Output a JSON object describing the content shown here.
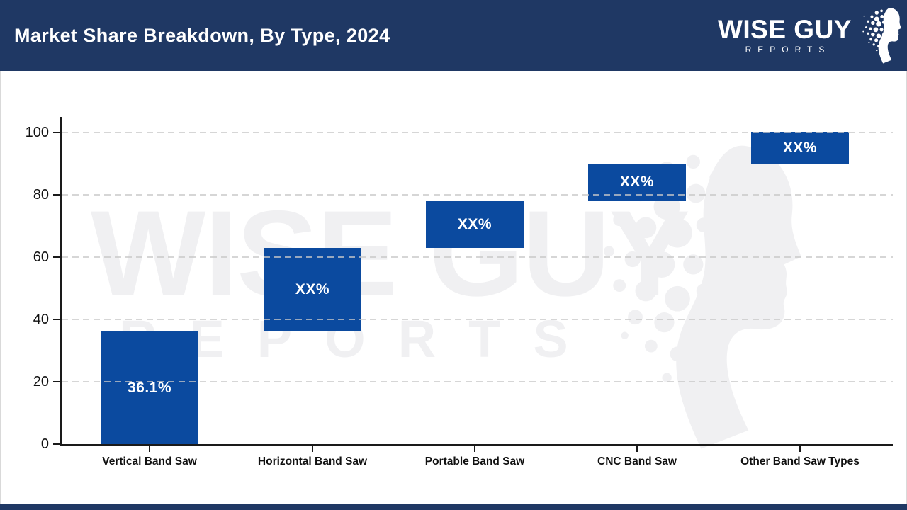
{
  "header": {
    "title": "Market Share Breakdown, By Type, 2024",
    "logo": {
      "line1": "WISE GUY",
      "line2": "REPORTS"
    }
  },
  "watermark": {
    "line1": "WISE GUY",
    "line2": "REPORTS"
  },
  "colors": {
    "header_navy": "#1f3864",
    "bar_blue": "#0b4a9f",
    "bar_label_white": "#ffffff",
    "gridline_gray": "#cccccc",
    "watermark_gray": "#f0f0f2"
  },
  "chart_data": {
    "type": "bar",
    "subtype": "waterfall-floating-segments",
    "title": "Market Share Breakdown, By Type, 2024",
    "xlabel": "",
    "ylabel": "",
    "ylim": [
      0,
      100
    ],
    "yticks": [
      0,
      20,
      40,
      60,
      80,
      100
    ],
    "grid": "horizontal-dashed",
    "legend": "none",
    "categories": [
      "Vertical Band Saw",
      "Horizontal Band Saw",
      "Portable Band Saw",
      "CNC Band Saw",
      "Other Band Saw Types"
    ],
    "bars": [
      {
        "category": "Vertical Band Saw",
        "start": 0,
        "end": 36.1,
        "label": "36.1%"
      },
      {
        "category": "Horizontal Band Saw",
        "start": 36.1,
        "end": 63,
        "label": "XX%"
      },
      {
        "category": "Portable Band Saw",
        "start": 63,
        "end": 78,
        "label": "XX%"
      },
      {
        "category": "CNC Band Saw",
        "start": 78,
        "end": 90,
        "label": "XX%"
      },
      {
        "category": "Other Band Saw Types",
        "start": 90,
        "end": 100,
        "label": "XX%"
      }
    ]
  }
}
